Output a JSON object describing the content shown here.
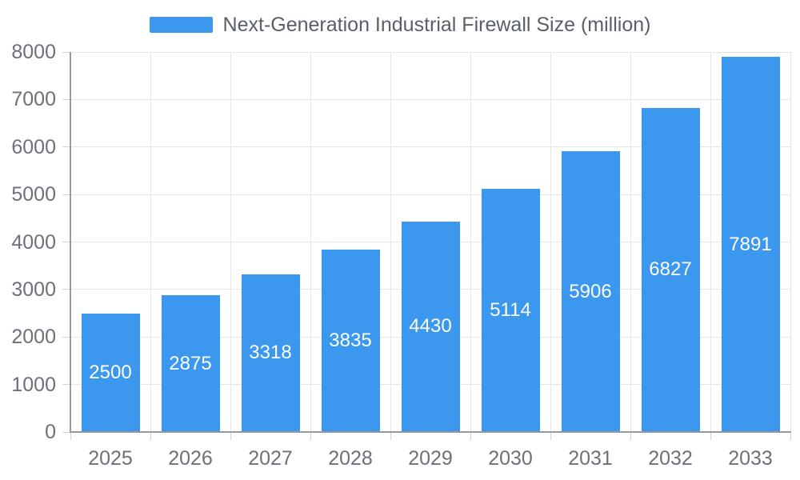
{
  "legend": {
    "label": "Next-Generation Industrial Firewall Size (million)"
  },
  "chart_data": {
    "type": "bar",
    "title": "Next-Generation Industrial Firewall Size (million)",
    "categories": [
      "2025",
      "2026",
      "2027",
      "2028",
      "2029",
      "2030",
      "2031",
      "2032",
      "2033"
    ],
    "values": [
      2500,
      2875,
      3318,
      3835,
      4430,
      5114,
      5906,
      6827,
      7891
    ],
    "xlabel": "",
    "ylabel": "",
    "ylim": [
      0,
      8000
    ],
    "yticks": [
      "0",
      "1000",
      "2000",
      "3000",
      "4000",
      "5000",
      "6000",
      "7000",
      "8000"
    ],
    "ytick_step": 1000,
    "grid": true,
    "legend_position": "top-center",
    "bar_labels_inside": true,
    "colors": {
      "bar": "#3C98EE",
      "bar_label": "#FFFFFF",
      "axis_label": "#6E7079",
      "legend_label": "#5A5E66",
      "grid_line": "#E4E6EB",
      "axis_line": "#97999F",
      "tick": "#CFD2D9",
      "background": "#FFFFFF"
    }
  }
}
